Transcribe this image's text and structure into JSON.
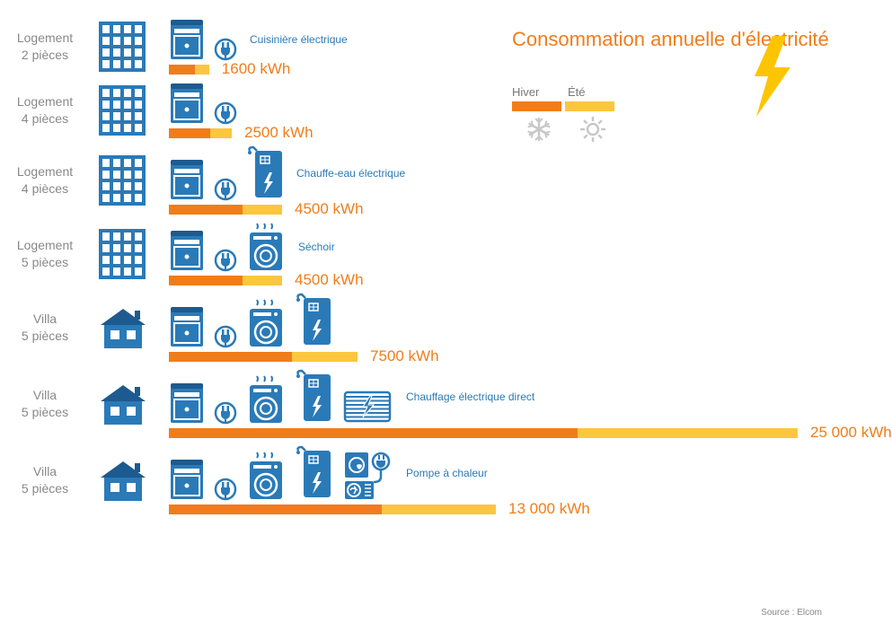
{
  "title": "Consommation annuelle d'électricité",
  "legend": {
    "winter": "Hiver",
    "summer": "Été"
  },
  "colors": {
    "winter": "#f07d1a",
    "summer": "#fcc63f",
    "blue": "#2a7ab8",
    "blueDark": "#1d5a8f",
    "grey": "#888888",
    "lightgrey": "#c8c8c8",
    "bolt": "#fdc500"
  },
  "bar": {
    "maxValue": 25000,
    "maxPx": 700,
    "winterFraction": 0.65
  },
  "rows": [
    {
      "label1": "Logement",
      "label2": "2 pièces",
      "building": "apartment",
      "apps": [
        "stove",
        "plug"
      ],
      "appLabel": "Cuisinière électrique",
      "value": 1600,
      "kwh": "1600 kWh"
    },
    {
      "label1": "Logement",
      "label2": "4 pièces",
      "building": "apartment",
      "apps": [
        "stove",
        "plug"
      ],
      "appLabel": "",
      "value": 2500,
      "kwh": "2500 kWh"
    },
    {
      "label1": "Logement",
      "label2": "4 pièces",
      "building": "apartment",
      "apps": [
        "stove",
        "plug",
        "heater"
      ],
      "appLabel": "Chauffe-eau électrique",
      "value": 4500,
      "kwh": "4500 kWh"
    },
    {
      "label1": "Logement",
      "label2": "5 pièces",
      "building": "apartment",
      "apps": [
        "stove",
        "plug",
        "dryer"
      ],
      "appLabel": "Séchoir",
      "value": 4500,
      "kwh": "4500 kWh"
    },
    {
      "label1": "Villa",
      "label2": "5 pièces",
      "building": "house",
      "apps": [
        "stove",
        "plug",
        "dryer",
        "heater"
      ],
      "appLabel": "",
      "value": 7500,
      "kwh": "7500 kWh"
    },
    {
      "label1": "Villa",
      "label2": "5 pièces",
      "building": "house",
      "apps": [
        "stove",
        "plug",
        "dryer",
        "heater",
        "radiator"
      ],
      "appLabel": "Chauffage électrique direct",
      "value": 25000,
      "kwh": "25 000 kWh"
    },
    {
      "label1": "Villa",
      "label2": "5 pièces",
      "building": "house",
      "apps": [
        "stove",
        "plug",
        "dryer",
        "heater",
        "heatpump"
      ],
      "appLabel": "Pompe à chaleur",
      "value": 13000,
      "kwh": "13 000 kWh"
    }
  ],
  "source": "Source : Elcom"
}
